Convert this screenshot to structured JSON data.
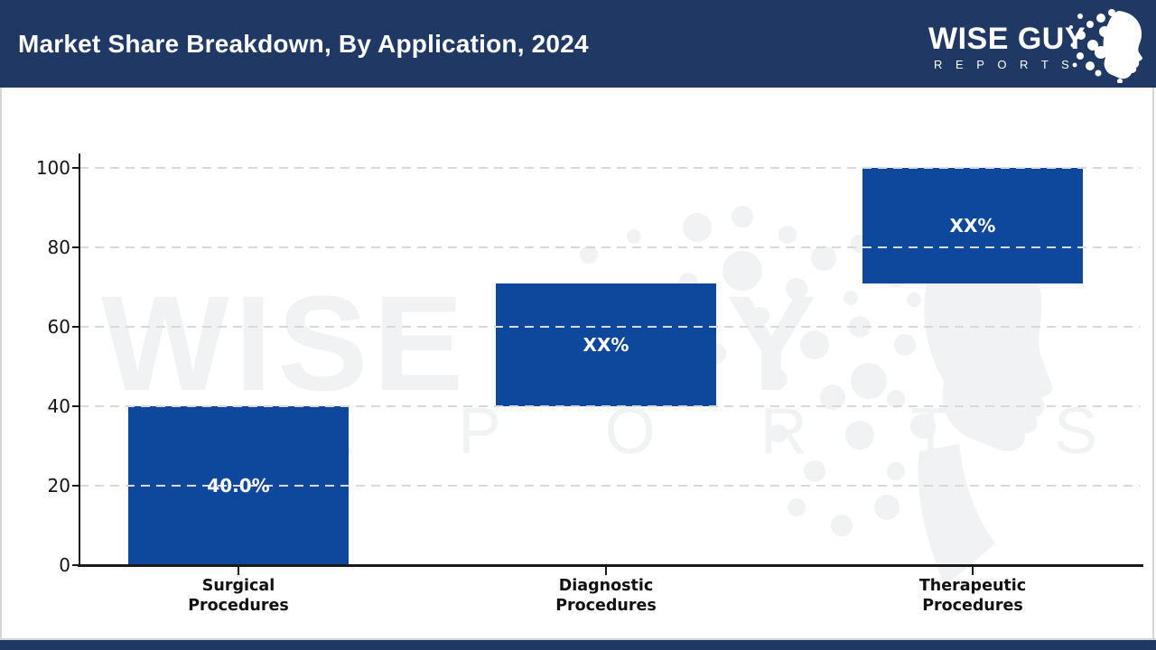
{
  "header": {
    "title": "Market Share Breakdown, By Application, 2024",
    "bg_color": "#203864"
  },
  "logo": {
    "line1": "WISE GUY",
    "line2": "R E P O R T S"
  },
  "watermark": {
    "line1": "WISE GUY",
    "line2": "R E P O R T S"
  },
  "chart_data": {
    "type": "bar",
    "subtype": "floating-segment-breakdown",
    "title": "Market Share Breakdown, By Application, 2024",
    "categories": [
      "Surgical Procedures",
      "Diagnostic Procedures",
      "Therapeutic Procedures"
    ],
    "category_label_lines": [
      [
        "Surgical",
        "Procedures"
      ],
      [
        "Diagnostic",
        "Procedures"
      ],
      [
        "Therapeutic",
        "Procedures"
      ]
    ],
    "bars": [
      {
        "category": "Surgical Procedures",
        "start": 0,
        "end": 40,
        "value": 40.0,
        "label": "40.0%"
      },
      {
        "category": "Diagnostic Procedures",
        "start": 40,
        "end": 71,
        "value": 31.0,
        "label": "XX%"
      },
      {
        "category": "Therapeutic Procedures",
        "start": 71,
        "end": 100,
        "value": 29.0,
        "label": "XX%"
      }
    ],
    "yticks": [
      0,
      20,
      40,
      60,
      80,
      100
    ],
    "ylim": [
      0,
      104
    ],
    "xlabel": "",
    "ylabel": "",
    "grid": "dashed horizontal, drawn above bars",
    "grid_color": "#d9d9d9",
    "bar_color": "#0d489c",
    "bar_label_color": "#ffffff",
    "legend": "none"
  },
  "colors": {
    "header_navy": "#203864",
    "bar_blue": "#0d489c",
    "grid_gray": "#d9d9d9",
    "watermark_gray": "#f1f2f4",
    "border_gray": "#d6d6d6",
    "axis_black": "#1a1a1a"
  }
}
